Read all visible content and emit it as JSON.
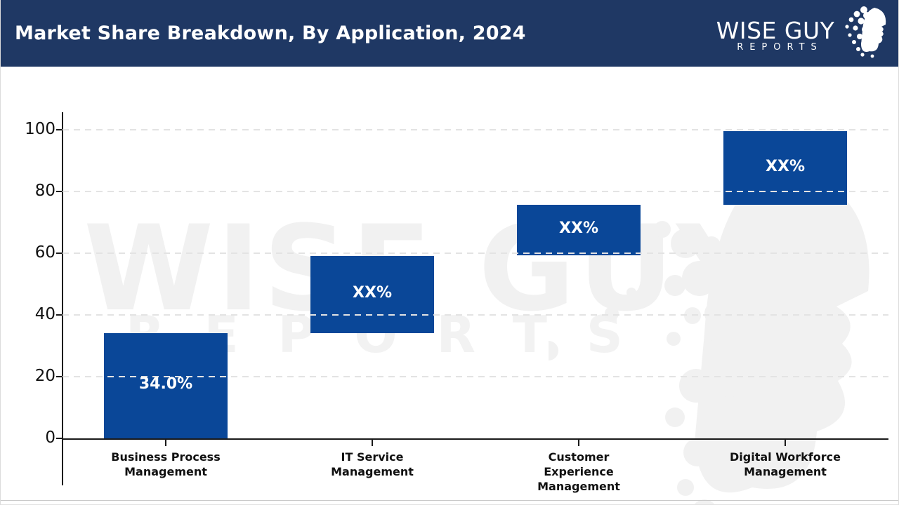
{
  "header": {
    "title": "Market Share Breakdown, By Application, 2024",
    "logo": {
      "line1": "WISE GUY",
      "line2": "REPORTS"
    },
    "bg_color": "#1f3864"
  },
  "watermark": {
    "line1": "WISE GUY",
    "line2": "REPORTS"
  },
  "colors": {
    "header_bg": "#1f3864",
    "bar_blue": "#0a4798",
    "grid": "#e3e3e3",
    "axis": "#1a1a1a",
    "watermark": "#f1f1f1"
  },
  "chart_data": {
    "type": "bar",
    "subtype": "waterfall",
    "title": "Market Share Breakdown, By Application, 2024",
    "xlabel": "",
    "ylabel": "",
    "ylim": [
      0,
      100
    ],
    "yticks": [
      0,
      20,
      40,
      60,
      80,
      100
    ],
    "grid": "horizontal-dashed",
    "legend": "none",
    "bar_color": "#0a4798",
    "categories": [
      "Business Process\nManagement",
      "IT Service\nManagement",
      "Customer\nExperience\nManagement",
      "Digital Workforce\nManagement"
    ],
    "bars": [
      {
        "label": "34.0%",
        "start": 0,
        "end": 34
      },
      {
        "label": "XX%",
        "start": 34,
        "end": 59
      },
      {
        "label": "XX%",
        "start": 59.3,
        "end": 75.7
      },
      {
        "label": "XX%",
        "start": 75.7,
        "end": 99.5
      }
    ]
  }
}
